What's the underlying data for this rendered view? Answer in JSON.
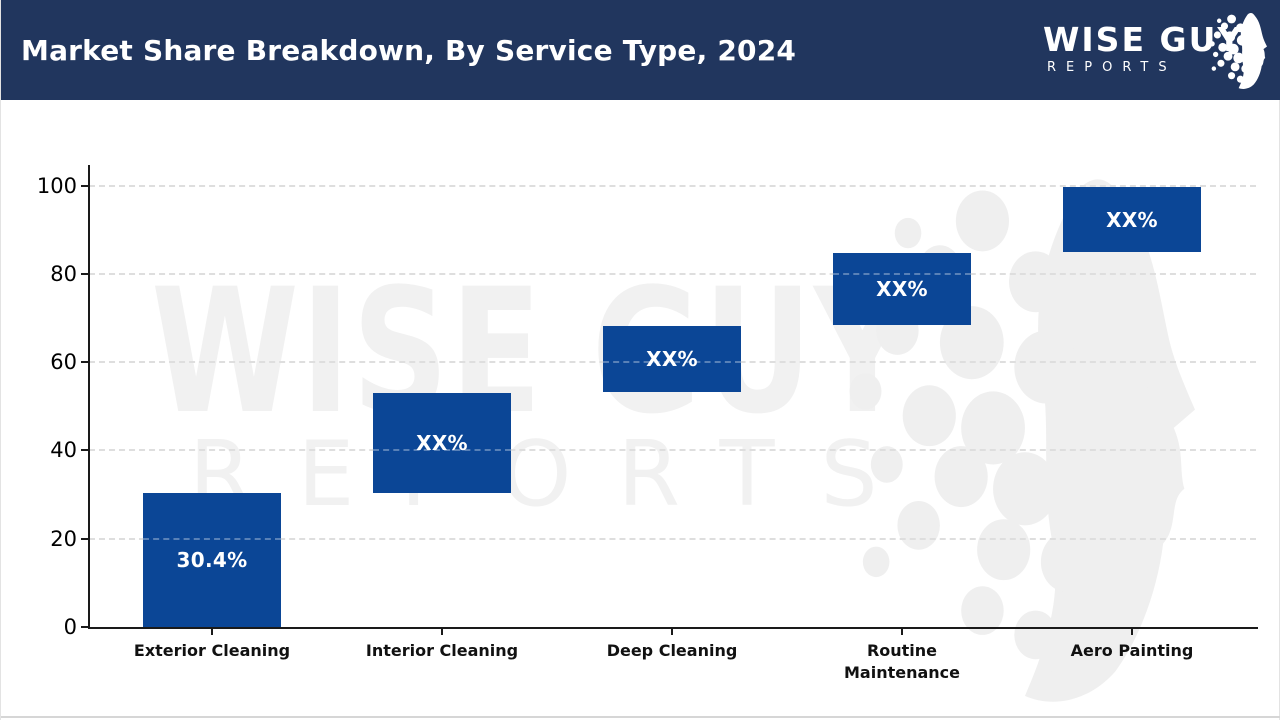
{
  "header": {
    "title": "Market Share Breakdown, By Service Type, 2024",
    "logo": {
      "line1": "WISE GUY",
      "line2": "REPORTS"
    }
  },
  "watermark": {
    "line1": "WISE GUY",
    "line2": "REPORTS"
  },
  "colors": {
    "header_bg": "#21365E",
    "bar_fill": "#0B4696",
    "bar_label_text": "#FFFFFF",
    "grid_line": "#DEDEDE",
    "axis_line": "#1A1A1A",
    "tick_label": "#000000",
    "watermark_text": "#F1F1F1",
    "bottom_rule": "#D6D6D6",
    "background": "#FFFFFF"
  },
  "chart_data": {
    "type": "bar",
    "subtype": "waterfall",
    "title": "Market Share Breakdown, By Service Type, 2024",
    "xlabel": "",
    "ylabel": "",
    "ylim": [
      0,
      104.6
    ],
    "yticks": [
      0,
      20,
      40,
      60,
      80,
      100
    ],
    "grid": "horizontal-dashed",
    "legend": false,
    "categories": [
      "Exterior Cleaning",
      "Interior Cleaning",
      "Deep Cleaning",
      "Routine Maintenance",
      "Aero Painting"
    ],
    "bars": [
      {
        "category": "Exterior Cleaning",
        "display": "Exterior Cleaning",
        "start": 0,
        "end": 30.4,
        "value": 30.4,
        "label": "30.4%"
      },
      {
        "category": "Interior Cleaning",
        "display": "Interior Cleaning",
        "start": 30.4,
        "end": 53.0,
        "value": 22.6,
        "label": "XX%"
      },
      {
        "category": "Deep Cleaning",
        "display": "Deep Cleaning",
        "start": 53.2,
        "end": 68.2,
        "value": 15.0,
        "label": "XX%"
      },
      {
        "category": "Routine Maintenance",
        "display": "Routine\nMaintenance",
        "start": 68.4,
        "end": 84.7,
        "value": 16.3,
        "label": "XX%"
      },
      {
        "category": "Aero Painting",
        "display": "Aero Painting",
        "start": 84.9,
        "end": 99.6,
        "value": 14.7,
        "label": "XX%"
      }
    ]
  }
}
